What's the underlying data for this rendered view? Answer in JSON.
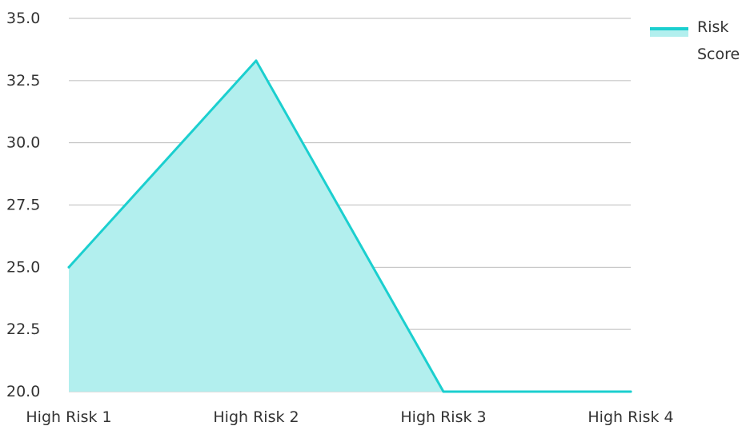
{
  "chart_data": {
    "type": "area",
    "title": "",
    "xlabel": "",
    "ylabel": "",
    "categories": [
      "High Risk 1",
      "High Risk 2",
      "High Risk 3",
      "High Risk 4"
    ],
    "series": [
      {
        "name": "Risk Score",
        "values": [
          25.0,
          33.3,
          20.0,
          20.0
        ],
        "line_color": "#1bcfcf",
        "fill_color": "#b2efee"
      }
    ],
    "ylim": [
      20.0,
      35.0
    ],
    "yticks": [
      "35.0",
      "32.5",
      "30.0",
      "27.5",
      "25.0",
      "22.5",
      "20.0"
    ],
    "grid": true,
    "grid_color": "#bbbbbb",
    "legend": {
      "position": "top-right",
      "lines": [
        "Risk",
        "Score"
      ]
    }
  }
}
